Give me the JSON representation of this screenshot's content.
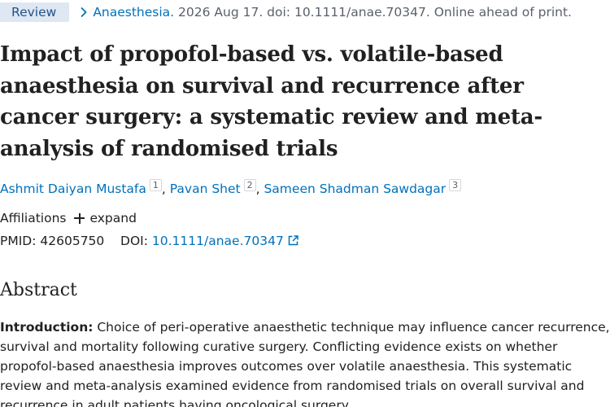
{
  "header": {
    "article_type_badge": "Review",
    "journal": "Anaesthesia.",
    "citation": "2026 Aug 17. doi: 10.1111/anae.70347. Online ahead of print."
  },
  "article": {
    "title": "Impact of propofol-based vs. volatile-based anaesthesia on survival and recurrence after cancer surgery: a systematic review and meta-analysis of randomised trials",
    "authors": [
      {
        "name": "Ashmit Daiyan Mustafa",
        "affiliation": "1"
      },
      {
        "name": "Pavan Shet",
        "affiliation": "2"
      },
      {
        "name": "Sameen Shadman Sawdagar",
        "affiliation": "3"
      }
    ],
    "affiliations_label": "Affiliations",
    "expand_label": "expand",
    "pmid_label": "PMID:",
    "pmid": "42605750",
    "doi_label": "DOI:",
    "doi": "10.1111/anae.70347"
  },
  "abstract": {
    "heading": "Abstract",
    "intro_label": "Introduction:",
    "intro_text": " Choice of peri-operative anaesthetic technique may influence cancer recurrence, survival and mortality following curative surgery. Conflicting evidence exists on whether propofol-based anaesthesia improves outcomes over volatile anaesthesia. This systematic review and meta-analysis examined evidence from randomised trials on overall survival and recurrence in adult patients having oncological surgery."
  },
  "colors": {
    "link": "#0071bc",
    "badge_bg": "#dfe7f3",
    "badge_text": "#20558a",
    "muted_text": "#5b616b",
    "body_text": "#212121"
  },
  "icons": {
    "breadcrumb_separator": "chevron-right-icon",
    "expand": "plus-icon",
    "external_link": "external-link-icon"
  }
}
